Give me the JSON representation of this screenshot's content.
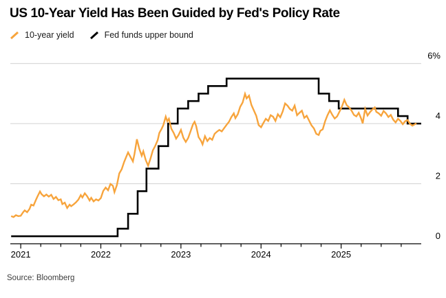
{
  "title": "US 10-Year Yield Has Been Guided by Fed's Policy Rate",
  "source_label": "Source: Bloomberg",
  "colors": {
    "yield_orange": "#F7A43C",
    "fed_black": "#000000",
    "gridline": "#D9D9D9",
    "axis": "#000000",
    "text": "#000000",
    "source_text": "#3C3C3C"
  },
  "legend": {
    "items": [
      {
        "label": "10-year yield",
        "color": "#F7A43C"
      },
      {
        "label": "Fed funds upper bound",
        "color": "#000000"
      }
    ]
  },
  "chart_data": {
    "type": "line",
    "title": "US 10-Year Yield Has Been Guided by Fed's Policy Rate",
    "xlabel": "",
    "ylabel": "Percent",
    "x_axis": {
      "range": [
        2020.87,
        2026.0
      ],
      "year_ticks": [
        2021,
        2022,
        2023,
        2024,
        2025
      ],
      "minor_tick_interval_years": 0.25,
      "tick_labels": [
        "2021",
        "2022",
        "2023",
        "2024",
        "2025"
      ]
    },
    "y_axis": {
      "range": [
        0,
        6.3
      ],
      "ticks": [
        {
          "value": 0,
          "label": "0"
        },
        {
          "value": 2,
          "label": "2"
        },
        {
          "value": 4,
          "label": "4"
        },
        {
          "value": 6,
          "label": "6%"
        }
      ],
      "gridlines": [
        2,
        4,
        6
      ],
      "position": "right"
    },
    "legend_position": "top-left",
    "grid": true,
    "series": [
      {
        "name": "Fed funds upper bound",
        "type": "step",
        "color": "#000000",
        "stroke_width": 2.6,
        "points": [
          [
            2020.88,
            0.25
          ],
          [
            2022.21,
            0.5
          ],
          [
            2022.34,
            1.0
          ],
          [
            2022.46,
            1.75
          ],
          [
            2022.57,
            2.5
          ],
          [
            2022.72,
            3.25
          ],
          [
            2022.84,
            4.0
          ],
          [
            2022.96,
            4.5
          ],
          [
            2023.09,
            4.75
          ],
          [
            2023.22,
            5.0
          ],
          [
            2023.34,
            5.25
          ],
          [
            2023.57,
            5.5
          ],
          [
            2024.72,
            5.0
          ],
          [
            2024.85,
            4.75
          ],
          [
            2024.97,
            4.5
          ],
          [
            2025.71,
            4.25
          ],
          [
            2025.83,
            4.0
          ],
          [
            2026.0,
            4.0
          ]
        ]
      },
      {
        "name": "10-year yield",
        "type": "line",
        "color": "#F7A43C",
        "stroke_width": 2.4,
        "points": [
          [
            2020.88,
            0.92
          ],
          [
            2020.91,
            0.89
          ],
          [
            2020.94,
            0.95
          ],
          [
            2020.97,
            0.92
          ],
          [
            2021.0,
            0.93
          ],
          [
            2021.03,
            1.05
          ],
          [
            2021.05,
            1.11
          ],
          [
            2021.08,
            1.05
          ],
          [
            2021.11,
            1.16
          ],
          [
            2021.13,
            1.3
          ],
          [
            2021.16,
            1.27
          ],
          [
            2021.19,
            1.46
          ],
          [
            2021.21,
            1.58
          ],
          [
            2021.24,
            1.74
          ],
          [
            2021.26,
            1.65
          ],
          [
            2021.29,
            1.58
          ],
          [
            2021.32,
            1.64
          ],
          [
            2021.35,
            1.57
          ],
          [
            2021.38,
            1.63
          ],
          [
            2021.41,
            1.49
          ],
          [
            2021.44,
            1.56
          ],
          [
            2021.47,
            1.45
          ],
          [
            2021.5,
            1.48
          ],
          [
            2021.52,
            1.32
          ],
          [
            2021.55,
            1.37
          ],
          [
            2021.58,
            1.19
          ],
          [
            2021.61,
            1.3
          ],
          [
            2021.63,
            1.25
          ],
          [
            2021.66,
            1.31
          ],
          [
            2021.69,
            1.38
          ],
          [
            2021.72,
            1.47
          ],
          [
            2021.75,
            1.62
          ],
          [
            2021.77,
            1.54
          ],
          [
            2021.8,
            1.68
          ],
          [
            2021.83,
            1.58
          ],
          [
            2021.86,
            1.44
          ],
          [
            2021.88,
            1.53
          ],
          [
            2021.91,
            1.41
          ],
          [
            2021.94,
            1.48
          ],
          [
            2021.97,
            1.44
          ],
          [
            2022.0,
            1.52
          ],
          [
            2022.03,
            1.76
          ],
          [
            2022.06,
            1.87
          ],
          [
            2022.09,
            1.78
          ],
          [
            2022.12,
            1.99
          ],
          [
            2022.15,
            1.93
          ],
          [
            2022.17,
            1.72
          ],
          [
            2022.2,
            1.95
          ],
          [
            2022.23,
            2.34
          ],
          [
            2022.26,
            2.48
          ],
          [
            2022.29,
            2.72
          ],
          [
            2022.32,
            2.91
          ],
          [
            2022.34,
            3.04
          ],
          [
            2022.37,
            2.89
          ],
          [
            2022.4,
            2.74
          ],
          [
            2022.42,
            2.99
          ],
          [
            2022.45,
            3.48
          ],
          [
            2022.48,
            3.16
          ],
          [
            2022.51,
            2.93
          ],
          [
            2022.53,
            3.08
          ],
          [
            2022.56,
            2.79
          ],
          [
            2022.59,
            2.6
          ],
          [
            2022.62,
            2.84
          ],
          [
            2022.65,
            3.11
          ],
          [
            2022.68,
            3.26
          ],
          [
            2022.71,
            3.45
          ],
          [
            2022.73,
            3.69
          ],
          [
            2022.76,
            3.83
          ],
          [
            2022.78,
            3.95
          ],
          [
            2022.81,
            4.23
          ],
          [
            2022.83,
            4.08
          ],
          [
            2022.85,
            4.16
          ],
          [
            2022.88,
            3.83
          ],
          [
            2022.91,
            3.69
          ],
          [
            2022.94,
            3.5
          ],
          [
            2022.97,
            3.62
          ],
          [
            2023.0,
            3.79
          ],
          [
            2023.03,
            3.53
          ],
          [
            2023.06,
            3.39
          ],
          [
            2023.09,
            3.52
          ],
          [
            2023.12,
            3.74
          ],
          [
            2023.15,
            3.97
          ],
          [
            2023.17,
            4.06
          ],
          [
            2023.19,
            3.92
          ],
          [
            2023.22,
            3.55
          ],
          [
            2023.25,
            3.43
          ],
          [
            2023.27,
            3.31
          ],
          [
            2023.3,
            3.58
          ],
          [
            2023.33,
            3.42
          ],
          [
            2023.36,
            3.52
          ],
          [
            2023.39,
            3.46
          ],
          [
            2023.42,
            3.66
          ],
          [
            2023.45,
            3.73
          ],
          [
            2023.48,
            3.79
          ],
          [
            2023.51,
            3.74
          ],
          [
            2023.54,
            3.85
          ],
          [
            2023.57,
            3.96
          ],
          [
            2023.6,
            4.06
          ],
          [
            2023.63,
            4.22
          ],
          [
            2023.66,
            4.34
          ],
          [
            2023.68,
            4.18
          ],
          [
            2023.71,
            4.31
          ],
          [
            2023.74,
            4.56
          ],
          [
            2023.77,
            4.7
          ],
          [
            2023.8,
            4.99
          ],
          [
            2023.82,
            4.84
          ],
          [
            2023.85,
            4.93
          ],
          [
            2023.88,
            4.62
          ],
          [
            2023.91,
            4.44
          ],
          [
            2023.94,
            4.26
          ],
          [
            2023.97,
            3.95
          ],
          [
            2024.0,
            3.88
          ],
          [
            2024.03,
            4.02
          ],
          [
            2024.06,
            4.16
          ],
          [
            2024.09,
            4.09
          ],
          [
            2024.12,
            4.28
          ],
          [
            2024.15,
            4.23
          ],
          [
            2024.18,
            4.09
          ],
          [
            2024.21,
            4.31
          ],
          [
            2024.24,
            4.21
          ],
          [
            2024.27,
            4.4
          ],
          [
            2024.3,
            4.67
          ],
          [
            2024.33,
            4.6
          ],
          [
            2024.36,
            4.49
          ],
          [
            2024.39,
            4.43
          ],
          [
            2024.42,
            4.6
          ],
          [
            2024.45,
            4.28
          ],
          [
            2024.48,
            4.36
          ],
          [
            2024.51,
            4.43
          ],
          [
            2024.54,
            4.19
          ],
          [
            2024.57,
            4.26
          ],
          [
            2024.6,
            4.1
          ],
          [
            2024.63,
            3.94
          ],
          [
            2024.66,
            3.84
          ],
          [
            2024.69,
            3.66
          ],
          [
            2024.72,
            3.62
          ],
          [
            2024.74,
            3.76
          ],
          [
            2024.77,
            3.81
          ],
          [
            2024.8,
            4.08
          ],
          [
            2024.83,
            4.28
          ],
          [
            2024.86,
            4.44
          ],
          [
            2024.89,
            4.29
          ],
          [
            2024.92,
            4.17
          ],
          [
            2024.95,
            4.24
          ],
          [
            2024.98,
            4.4
          ],
          [
            2025.01,
            4.57
          ],
          [
            2025.04,
            4.79
          ],
          [
            2025.07,
            4.61
          ],
          [
            2025.1,
            4.54
          ],
          [
            2025.13,
            4.43
          ],
          [
            2025.16,
            4.29
          ],
          [
            2025.19,
            4.24
          ],
          [
            2025.22,
            4.36
          ],
          [
            2025.25,
            4.17
          ],
          [
            2025.27,
            4.01
          ],
          [
            2025.3,
            4.49
          ],
          [
            2025.33,
            4.27
          ],
          [
            2025.36,
            4.38
          ],
          [
            2025.39,
            4.47
          ],
          [
            2025.42,
            4.54
          ],
          [
            2025.44,
            4.39
          ],
          [
            2025.47,
            4.34
          ],
          [
            2025.5,
            4.26
          ],
          [
            2025.53,
            4.42
          ],
          [
            2025.56,
            4.34
          ],
          [
            2025.59,
            4.22
          ],
          [
            2025.62,
            4.29
          ],
          [
            2025.65,
            4.13
          ],
          [
            2025.68,
            4.04
          ],
          [
            2025.71,
            4.16
          ],
          [
            2025.74,
            4.09
          ],
          [
            2025.77,
            3.98
          ],
          [
            2025.8,
            4.08
          ],
          [
            2025.83,
            4.12
          ],
          [
            2025.86,
            3.99
          ],
          [
            2025.89,
            3.93
          ],
          [
            2025.94,
            4.01
          ]
        ]
      }
    ]
  }
}
